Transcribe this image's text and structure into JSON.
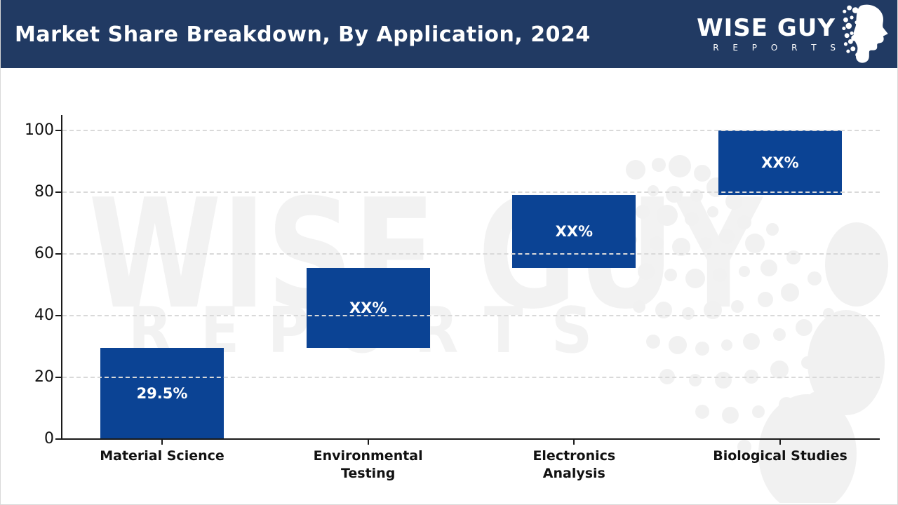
{
  "header": {
    "title": "Market Share Breakdown, By Application, 2024",
    "bg_color": "#213A63",
    "logo": {
      "wordmark": "WISE GUY",
      "subtitle": "R E P O R T S"
    }
  },
  "watermark": {
    "line1": "WISE GUY",
    "line2": "REPORTS"
  },
  "chart_data": {
    "type": "bar",
    "subtype": "waterfall",
    "title": "Market Share Breakdown, By Application, 2024",
    "categories": [
      "Material Science",
      "Environmental\nTesting",
      "Electronics\nAnalysis",
      "Biological Studies"
    ],
    "segments": [
      {
        "category": "Material Science",
        "start": 0,
        "end": 29.5,
        "label": "29.5%"
      },
      {
        "category": "Environmental Testing",
        "start": 29.5,
        "end": 55.5,
        "label": "XX%"
      },
      {
        "category": "Electronics Analysis",
        "start": 55.5,
        "end": 79,
        "label": "XX%"
      },
      {
        "category": "Biological Studies",
        "start": 79,
        "end": 100,
        "label": "XX%"
      }
    ],
    "xlabel": "",
    "ylabel": "",
    "ylim": [
      0,
      105
    ],
    "yticks": [
      0,
      20,
      40,
      60,
      80,
      100
    ],
    "ytick_labels": [
      "0",
      "20",
      "40",
      "60",
      "80",
      "100"
    ],
    "grid": "horizontal-dashed",
    "legend": "none",
    "bar_color": "#0B4394",
    "bar_label_color": "#FFFFFF",
    "grid_color": "#D9D9D9",
    "axis_color": "#1A1A1A"
  }
}
